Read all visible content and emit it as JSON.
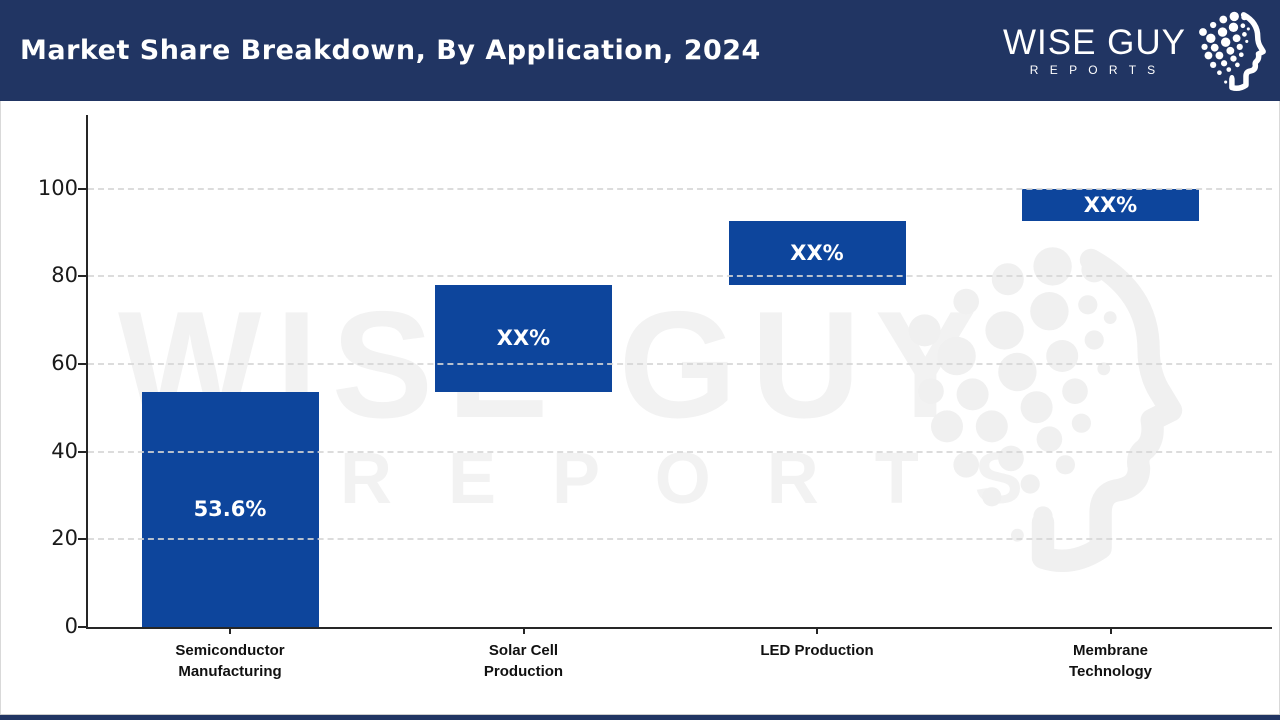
{
  "header": {
    "title": "Market Share Breakdown, By Application, 2024",
    "logo": {
      "name": "WISE GUY",
      "sub": "R E P O R T S"
    }
  },
  "watermark": {
    "big": "WISE GUY",
    "sub": "R E P O R T S"
  },
  "chart_data": {
    "type": "bar",
    "subtype": "waterfall",
    "title": "Market Share Breakdown, By Application, 2024",
    "categories": [
      "Semiconductor\nManufacturing",
      "Solar Cell\nProduction",
      "LED Production",
      "Membrane\nTechnology"
    ],
    "segments": [
      {
        "category": "Semiconductor Manufacturing",
        "start": 0,
        "end": 53.6,
        "label": "53.6%"
      },
      {
        "category": "Solar Cell Production",
        "start": 53.6,
        "end": 78.0,
        "label": "XX%"
      },
      {
        "category": "LED Production",
        "start": 78.0,
        "end": 92.6,
        "label": "XX%"
      },
      {
        "category": "Membrane Technology",
        "start": 92.6,
        "end": 100.0,
        "label": "XX%"
      }
    ],
    "yticks": [
      0,
      20,
      40,
      60,
      80,
      100
    ],
    "ylim": [
      0,
      105
    ],
    "xlabel": "",
    "ylabel": "",
    "grid": "horizontal-dashed",
    "legend": "none",
    "colors": {
      "bar": "#0d459c",
      "bar_label": "#ffffff",
      "grid": "#d6d6d6",
      "axis": "#262626",
      "tick_label": "#1a1a1a",
      "header_bg": "#213563",
      "watermark": "#f2f2f2"
    }
  }
}
